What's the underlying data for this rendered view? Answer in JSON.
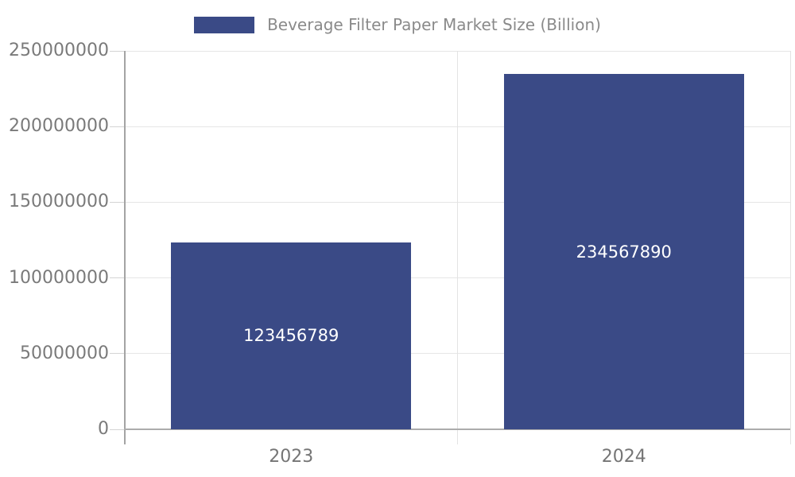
{
  "legend": {
    "label": "Beverage Filter Paper Market Size (Billion)"
  },
  "colors": {
    "bar": "#3A4A86",
    "background": "#FFFFFF",
    "grid": "#E6E6E6",
    "tick": "#D4D4D4",
    "separator": "#E3E3E3",
    "axis_line": "#A4A4A4",
    "baseline": "#ACACAC",
    "y_tick_label": "#7A7A7A",
    "x_tick_label": "#757575",
    "legend_text": "#8A8A8A",
    "bar_label": "#FFFFFF"
  },
  "chart_data": {
    "type": "bar",
    "title": "",
    "xlabel": "",
    "ylabel": "",
    "categories": [
      "2023",
      "2024"
    ],
    "series": [
      {
        "name": "Beverage Filter Paper Market Size (Billion)",
        "values": [
          123456789,
          234567890
        ]
      }
    ],
    "bar_value_labels": [
      "123456789",
      "234567890"
    ],
    "yticks": [
      0,
      50000000,
      100000000,
      150000000,
      200000000,
      250000000
    ],
    "ytick_labels": [
      "0",
      "50000000",
      "100000000",
      "150000000",
      "200000000",
      "250000000"
    ],
    "ylim": [
      0,
      250000000
    ],
    "grid": true,
    "legend_position": "top"
  }
}
